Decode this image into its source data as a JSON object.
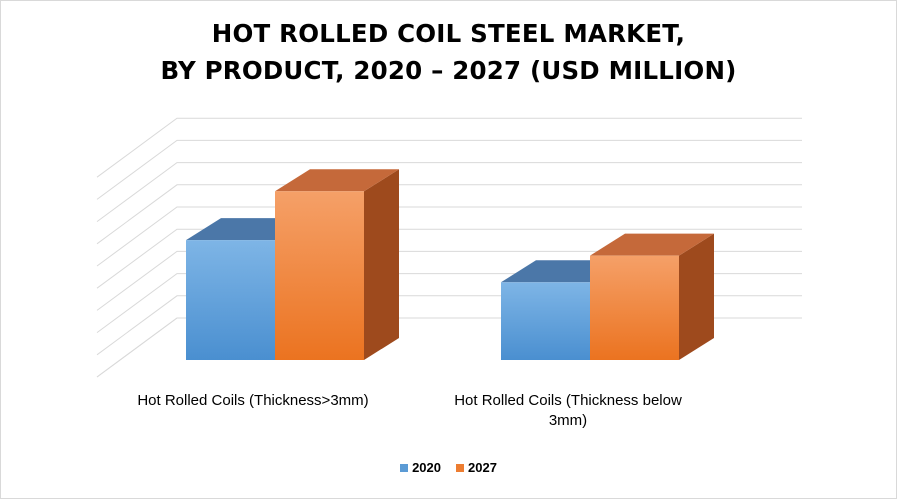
{
  "chart_data": {
    "type": "bar",
    "title_lines": [
      "HOT ROLLED COIL STEEL MARKET,",
      "BY PRODUCT, 2020 – 2027 (USD MILLION)"
    ],
    "categories": [
      "Hot Rolled Coils (Thickness>3mm)",
      "Hot Rolled Coils (Thickness below 3mm)"
    ],
    "series": [
      {
        "name": "2020",
        "values": [
          5.4,
          3.5
        ]
      },
      {
        "name": "2027",
        "values": [
          7.6,
          4.7
        ]
      }
    ],
    "ylim": [
      0,
      9
    ],
    "grid": true,
    "legend_position": "bottom",
    "style_3d": true,
    "colors": {
      "2020": {
        "front": "#5b9bd5",
        "frontLight": "#7eb5e6",
        "top": "#4b77a8",
        "side": "#3a5f87"
      },
      "2027": {
        "front": "#ed7d31",
        "frontLight": "#f5a068",
        "top": "#c5693a",
        "side": "#9e4a1d"
      }
    }
  }
}
